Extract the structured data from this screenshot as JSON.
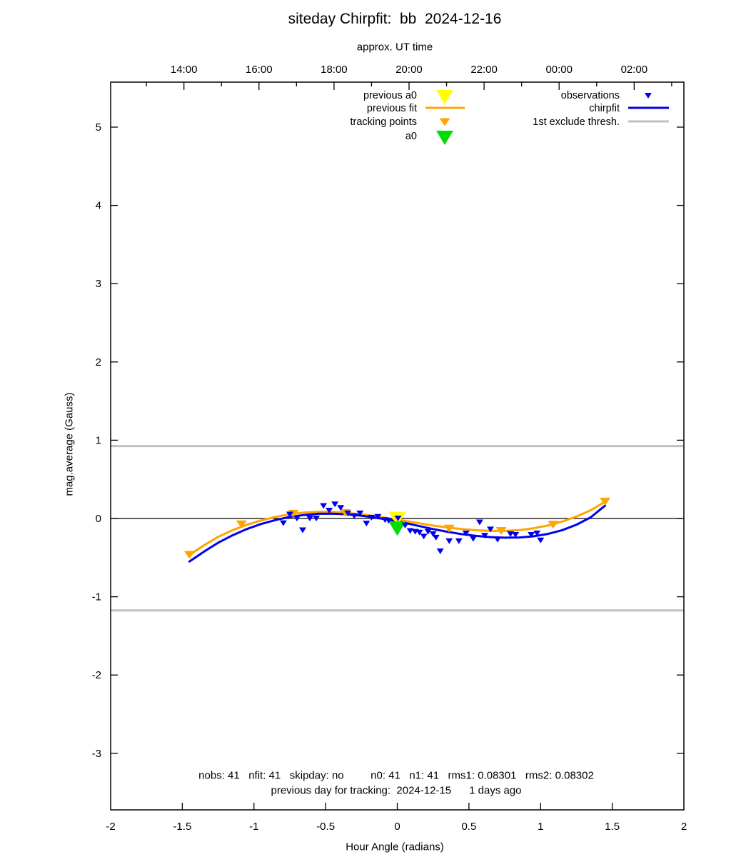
{
  "title": "siteday Chirpfit:  bb  2024-12-16",
  "stats": {
    "line1": "nobs: 41   nfit: 41   skipday: no         n0: 41   n1: 41   rms1: 0.08301   rms2: 0.08302",
    "line2": "previous day for tracking:  2024-12-15      1 days ago"
  },
  "chart_data": {
    "type": "line",
    "title": "siteday Chirpfit:  bb  2024-12-16",
    "xlabel": "Hour Angle (radians)",
    "ylabel": "mag.average (Gauss)",
    "x2label": "approx. UT time",
    "xlim": [
      -2,
      2
    ],
    "ylim": [
      -3.72,
      5.57
    ],
    "grid": false,
    "legend_position": "top-inside",
    "x_axis": {
      "label": "Hour Angle (radians)",
      "ticks": [
        {
          "v": -2,
          "t": "-2"
        },
        {
          "v": -1.5,
          "t": "-1.5"
        },
        {
          "v": -1,
          "t": "-1"
        },
        {
          "v": -0.5,
          "t": "-0.5"
        },
        {
          "v": 0,
          "t": "0"
        },
        {
          "v": 0.5,
          "t": "0.5"
        },
        {
          "v": 1,
          "t": "1"
        },
        {
          "v": 1.5,
          "t": "1.5"
        },
        {
          "v": 2,
          "t": "2"
        }
      ]
    },
    "y_axis": {
      "label": "mag.average (Gauss)",
      "ticks": [
        {
          "v": 5,
          "t": "5"
        },
        {
          "v": 4,
          "t": "4"
        },
        {
          "v": 3,
          "t": "3"
        },
        {
          "v": 2,
          "t": "2"
        },
        {
          "v": 1,
          "t": "1"
        },
        {
          "v": 0,
          "t": "0"
        },
        {
          "v": -1,
          "t": "-1"
        },
        {
          "v": -2,
          "t": "-2"
        },
        {
          "v": -3,
          "t": "-3"
        }
      ]
    },
    "x2_axis": {
      "label": "approx. UT time",
      "major": [
        {
          "t": "14:00",
          "ha": -1.4886
        },
        {
          "t": "16:00",
          "ha": -0.965
        },
        {
          "t": "18:00",
          "ha": -0.4414
        },
        {
          "t": "20:00",
          "ha": 0.0822
        },
        {
          "t": "22:00",
          "ha": 0.6058
        },
        {
          "t": "00:00",
          "ha": 1.1294
        },
        {
          "t": "02:00",
          "ha": 1.653
        }
      ],
      "minor_ha": [
        -1.7504,
        -1.2268,
        -0.7032,
        -0.1796,
        0.344,
        0.8676,
        1.3912,
        1.9148
      ]
    },
    "zero_line": 0,
    "thresholds": {
      "name": "1st exclude thresh.",
      "color": "#c0c0c0",
      "values": [
        0.925,
        -1.175
      ]
    },
    "series": [
      {
        "name": "previous fit",
        "kind": "line",
        "color": "#ffa500",
        "points": [
          [
            -1.45,
            -0.465
          ],
          [
            -1.35,
            -0.345
          ],
          [
            -1.25,
            -0.235
          ],
          [
            -1.15,
            -0.15
          ],
          [
            -1.05,
            -0.08
          ],
          [
            -0.95,
            -0.025
          ],
          [
            -0.85,
            0.02
          ],
          [
            -0.75,
            0.055
          ],
          [
            -0.65,
            0.075
          ],
          [
            -0.55,
            0.085
          ],
          [
            -0.45,
            0.085
          ],
          [
            -0.35,
            0.072
          ],
          [
            -0.25,
            0.052
          ],
          [
            -0.15,
            0.028
          ],
          [
            -0.05,
            0.0
          ],
          [
            0.05,
            -0.03
          ],
          [
            0.15,
            -0.06
          ],
          [
            0.25,
            -0.09
          ],
          [
            0.35,
            -0.115
          ],
          [
            0.45,
            -0.135
          ],
          [
            0.55,
            -0.15
          ],
          [
            0.65,
            -0.158
          ],
          [
            0.75,
            -0.158
          ],
          [
            0.85,
            -0.148
          ],
          [
            0.95,
            -0.125
          ],
          [
            1.05,
            -0.09
          ],
          [
            1.15,
            -0.04
          ],
          [
            1.25,
            0.025
          ],
          [
            1.35,
            0.105
          ],
          [
            1.45,
            0.215
          ]
        ]
      },
      {
        "name": "chirpfit",
        "kind": "line",
        "color": "#0000ee",
        "points": [
          [
            -1.45,
            -0.55
          ],
          [
            -1.35,
            -0.425
          ],
          [
            -1.25,
            -0.31
          ],
          [
            -1.15,
            -0.215
          ],
          [
            -1.05,
            -0.135
          ],
          [
            -0.95,
            -0.07
          ],
          [
            -0.85,
            -0.02
          ],
          [
            -0.75,
            0.02
          ],
          [
            -0.65,
            0.045
          ],
          [
            -0.55,
            0.06
          ],
          [
            -0.45,
            0.062
          ],
          [
            -0.35,
            0.052
          ],
          [
            -0.25,
            0.035
          ],
          [
            -0.15,
            0.01
          ],
          [
            -0.05,
            -0.02
          ],
          [
            0.05,
            -0.055
          ],
          [
            0.15,
            -0.095
          ],
          [
            0.25,
            -0.135
          ],
          [
            0.35,
            -0.17
          ],
          [
            0.45,
            -0.2
          ],
          [
            0.55,
            -0.222
          ],
          [
            0.65,
            -0.238
          ],
          [
            0.75,
            -0.245
          ],
          [
            0.85,
            -0.243
          ],
          [
            0.95,
            -0.228
          ],
          [
            1.05,
            -0.198
          ],
          [
            1.15,
            -0.15
          ],
          [
            1.25,
            -0.08
          ],
          [
            1.35,
            0.015
          ],
          [
            1.45,
            0.165
          ]
        ]
      },
      {
        "name": "tracking points",
        "kind": "marker",
        "marker": "triangle-down",
        "size": "small",
        "color": "#ffa500",
        "points": [
          [
            -1.45,
            -0.465
          ],
          [
            -1.0875,
            -0.075
          ],
          [
            -0.725,
            0.06
          ],
          [
            -0.3625,
            0.07
          ],
          [
            0.3625,
            -0.13
          ],
          [
            0.725,
            -0.16
          ],
          [
            1.0875,
            -0.08
          ],
          [
            1.45,
            0.215
          ]
        ]
      },
      {
        "name": "previous a0",
        "kind": "marker",
        "marker": "triangle-down",
        "size": "large",
        "color": "#ffff00",
        "points": [
          [
            0,
            -0.005
          ]
        ]
      },
      {
        "name": "a0",
        "kind": "marker",
        "marker": "triangle-down",
        "size": "large",
        "color": "#00dd00",
        "points": [
          [
            0,
            -0.13
          ]
        ]
      },
      {
        "name": "observations",
        "kind": "marker",
        "marker": "triangle-down",
        "size": "tiny",
        "color": "#0000ee",
        "points": [
          [
            -0.795,
            -0.06
          ],
          [
            -0.75,
            0.05
          ],
          [
            -0.7,
            0.0
          ],
          [
            -0.66,
            -0.15
          ],
          [
            -0.61,
            0.0
          ],
          [
            -0.565,
            0.0
          ],
          [
            -0.515,
            0.16
          ],
          [
            -0.475,
            0.1
          ],
          [
            -0.435,
            0.18
          ],
          [
            -0.395,
            0.135
          ],
          [
            -0.345,
            0.065
          ],
          [
            -0.3,
            0.03
          ],
          [
            -0.26,
            0.065
          ],
          [
            -0.215,
            -0.065
          ],
          [
            -0.18,
            0.01
          ],
          [
            -0.135,
            0.02
          ],
          [
            -0.085,
            -0.02
          ],
          [
            -0.06,
            -0.03
          ],
          [
            0.005,
            0.0
          ],
          [
            0.055,
            -0.09
          ],
          [
            0.09,
            -0.16
          ],
          [
            0.125,
            -0.17
          ],
          [
            0.155,
            -0.18
          ],
          [
            0.185,
            -0.23
          ],
          [
            0.215,
            -0.17
          ],
          [
            0.25,
            -0.2
          ],
          [
            0.27,
            -0.245
          ],
          [
            0.3,
            -0.42
          ],
          [
            0.3625,
            -0.29
          ],
          [
            0.43,
            -0.29
          ],
          [
            0.48,
            -0.19
          ],
          [
            0.53,
            -0.26
          ],
          [
            0.575,
            -0.05
          ],
          [
            0.61,
            -0.22
          ],
          [
            0.65,
            -0.14
          ],
          [
            0.7,
            -0.27
          ],
          [
            0.79,
            -0.2
          ],
          [
            0.825,
            -0.21
          ],
          [
            0.935,
            -0.21
          ],
          [
            0.975,
            -0.19
          ],
          [
            1.0,
            -0.28
          ]
        ]
      }
    ],
    "legend": {
      "columns": [
        {
          "items": [
            {
              "label": "previous a0",
              "marker": "triangle",
              "size": "large",
              "color": "#ffff00"
            },
            {
              "label": "previous fit",
              "marker": "line",
              "color": "#ffa500"
            },
            {
              "label": "tracking points",
              "marker": "triangle",
              "size": "small",
              "color": "#ffa500"
            },
            {
              "label": "a0",
              "marker": "triangle",
              "size": "large",
              "color": "#00dd00"
            }
          ]
        },
        {
          "items": [
            {
              "label": "observations",
              "marker": "triangle",
              "size": "tiny",
              "color": "#0000ee"
            },
            {
              "label": "chirpfit",
              "marker": "line",
              "color": "#0000ee"
            },
            {
              "label": "1st exclude thresh.",
              "marker": "line",
              "color": "#c0c0c0"
            }
          ]
        }
      ]
    }
  }
}
